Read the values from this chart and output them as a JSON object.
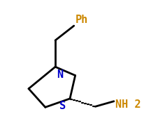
{
  "bg_color": "#ffffff",
  "ring_color": "#000000",
  "N_color": "#0000cc",
  "S_color": "#0000cc",
  "Ph_color": "#cc8800",
  "NH2_color": "#cc8800",
  "label_N": "N",
  "label_S": "S",
  "label_Ph": "Ph",
  "label_NH2": "NH 2",
  "font_size_labels": 11,
  "line_width": 2.0
}
